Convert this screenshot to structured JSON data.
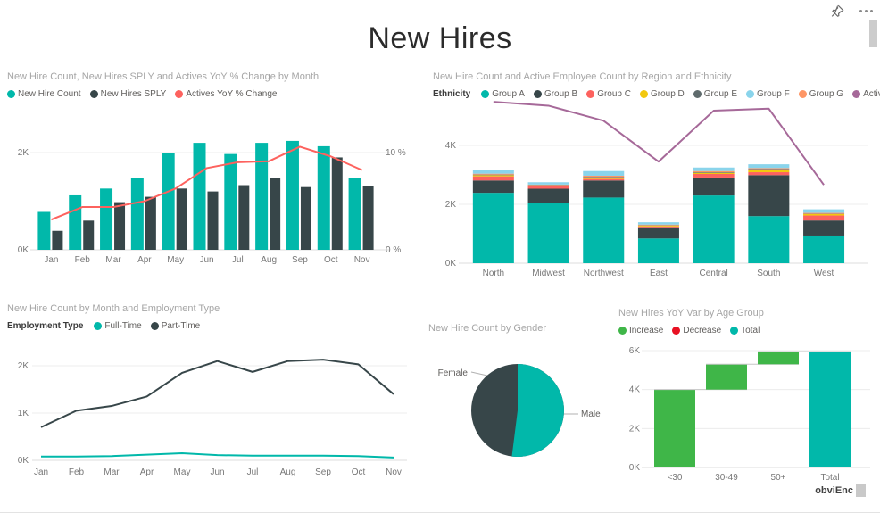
{
  "header": {
    "title": "New Hires",
    "watermark": "obviEnc"
  },
  "colors": {
    "teal": "#01B8AA",
    "dark": "#374649",
    "red": "#FD625E",
    "yellow": "#F2C80F",
    "gray": "#5F6B6D",
    "lightblue": "#8AD4EB",
    "orange": "#FE9666",
    "purple": "#A66999",
    "increase_green": "#3FB648",
    "decrease_red": "#E81123"
  },
  "chart_data": [
    {
      "type": "combo-bar-line",
      "title": "New Hire Count, New Hires SPLY and Actives YoY % Change by Month",
      "categories": [
        "Jan",
        "Feb",
        "Mar",
        "Apr",
        "May",
        "Jun",
        "Jul",
        "Aug",
        "Sep",
        "Oct",
        "Nov"
      ],
      "bar_series": [
        {
          "name": "New Hire Count",
          "color": "#01B8AA",
          "values": [
            780,
            1120,
            1260,
            1480,
            2000,
            2200,
            1970,
            2200,
            2240,
            2130,
            1480
          ]
        },
        {
          "name": "New Hires SPLY",
          "color": "#374649",
          "values": [
            390,
            600,
            980,
            1090,
            1260,
            1200,
            1330,
            1480,
            1290,
            1900,
            1320
          ]
        }
      ],
      "line_series": {
        "name": "Actives YoY % Change",
        "color": "#FD625E",
        "values": [
          3.1,
          4.4,
          4.4,
          5.0,
          6.3,
          8.4,
          9.0,
          9.1,
          10.6,
          9.6,
          8.2
        ]
      },
      "y_left": {
        "ticks": [
          {
            "label": "0K",
            "value": 0
          },
          {
            "label": "2K",
            "value": 2000
          }
        ],
        "max": 2000
      },
      "y_right": {
        "ticks": [
          {
            "label": "0 %",
            "value": 0
          },
          {
            "label": "10 %",
            "value": 10
          }
        ],
        "max": 10
      },
      "legend_position": "top",
      "grid": true
    },
    {
      "type": "stacked-bar-line",
      "title": "New Hire Count and Active Employee Count by Region and Ethnicity",
      "legend_label": "Ethnicity",
      "categories": [
        "North",
        "Midwest",
        "Northwest",
        "East",
        "Central",
        "South",
        "West"
      ],
      "series": [
        {
          "name": "Group A",
          "color": "#01B8AA",
          "values": [
            2390,
            2030,
            2230,
            840,
            2300,
            1600,
            940
          ]
        },
        {
          "name": "Group B",
          "color": "#374649",
          "values": [
            420,
            500,
            580,
            380,
            610,
            1390,
            510
          ]
        },
        {
          "name": "Group C",
          "color": "#FD625E",
          "values": [
            140,
            80,
            50,
            30,
            120,
            100,
            170
          ]
        },
        {
          "name": "Group D",
          "color": "#F2C80F",
          "values": [
            40,
            30,
            50,
            30,
            40,
            90,
            50
          ]
        },
        {
          "name": "Group E",
          "color": "#5F6B6D",
          "values": [
            20,
            10,
            20,
            10,
            20,
            20,
            10
          ]
        },
        {
          "name": "Group F",
          "color": "#8AD4EB",
          "values": [
            130,
            80,
            160,
            80,
            120,
            130,
            120
          ]
        },
        {
          "name": "Group G",
          "color": "#FE9666",
          "values": [
            30,
            20,
            40,
            20,
            40,
            30,
            30
          ]
        }
      ],
      "stack_order": [
        "Group A",
        "Group B",
        "Group C",
        "Group D",
        "Group E",
        "Group G",
        "Group F"
      ],
      "line_series": {
        "name": "Active Employee Count",
        "color": "#A66999",
        "values": [
          5480,
          5350,
          4840,
          3450,
          5180,
          5250,
          2660
        ]
      },
      "y": {
        "ticks": [
          {
            "label": "0K",
            "value": 0
          },
          {
            "label": "2K",
            "value": 2000
          },
          {
            "label": "4K",
            "value": 4000
          }
        ],
        "max": 5800
      },
      "legend_position": "top",
      "grid": true
    },
    {
      "type": "line",
      "title": "New Hire Count by Month and Employment Type",
      "legend_label": "Employment Type",
      "categories": [
        "Jan",
        "Feb",
        "Mar",
        "Apr",
        "May",
        "Jun",
        "Jul",
        "Aug",
        "Sep",
        "Oct",
        "Nov"
      ],
      "series": [
        {
          "name": "Full-Time",
          "color": "#01B8AA",
          "values": [
            80,
            80,
            90,
            120,
            150,
            110,
            100,
            100,
            100,
            90,
            60
          ]
        },
        {
          "name": "Part-Time",
          "color": "#374649",
          "values": [
            700,
            1050,
            1150,
            1350,
            1850,
            2100,
            1870,
            2100,
            2130,
            2030,
            1400
          ]
        }
      ],
      "y": {
        "ticks": [
          {
            "label": "0K",
            "value": 0
          },
          {
            "label": "1K",
            "value": 1000
          },
          {
            "label": "2K",
            "value": 2000
          }
        ],
        "max": 2000
      },
      "legend_position": "top",
      "grid": true
    },
    {
      "type": "pie",
      "title": "New Hire Count by Gender",
      "slices": [
        {
          "name": "Male",
          "color": "#01B8AA",
          "pct": 52
        },
        {
          "name": "Female",
          "color": "#374649",
          "pct": 48
        }
      ],
      "legend_position": "none"
    },
    {
      "type": "waterfall",
      "title": "New Hires YoY Var by Age Group",
      "legend": [
        {
          "name": "Increase",
          "color": "#3FB648"
        },
        {
          "name": "Decrease",
          "color": "#E81123"
        },
        {
          "name": "Total",
          "color": "#01B8AA"
        }
      ],
      "categories": [
        "<30",
        "30-49",
        "50+",
        "Total"
      ],
      "bars": [
        {
          "label": "<30",
          "start": 0,
          "end": 4000,
          "kind": "increase"
        },
        {
          "label": "30-49",
          "start": 4000,
          "end": 5300,
          "kind": "increase"
        },
        {
          "label": "50+",
          "start": 5300,
          "end": 5950,
          "kind": "increase"
        },
        {
          "label": "Total",
          "start": 0,
          "end": 5950,
          "kind": "total"
        }
      ],
      "y": {
        "ticks": [
          {
            "label": "0K",
            "value": 0
          },
          {
            "label": "2K",
            "value": 2000
          },
          {
            "label": "4K",
            "value": 4000
          },
          {
            "label": "6K",
            "value": 6000
          }
        ],
        "max": 6200
      },
      "legend_position": "top",
      "grid": true
    }
  ]
}
